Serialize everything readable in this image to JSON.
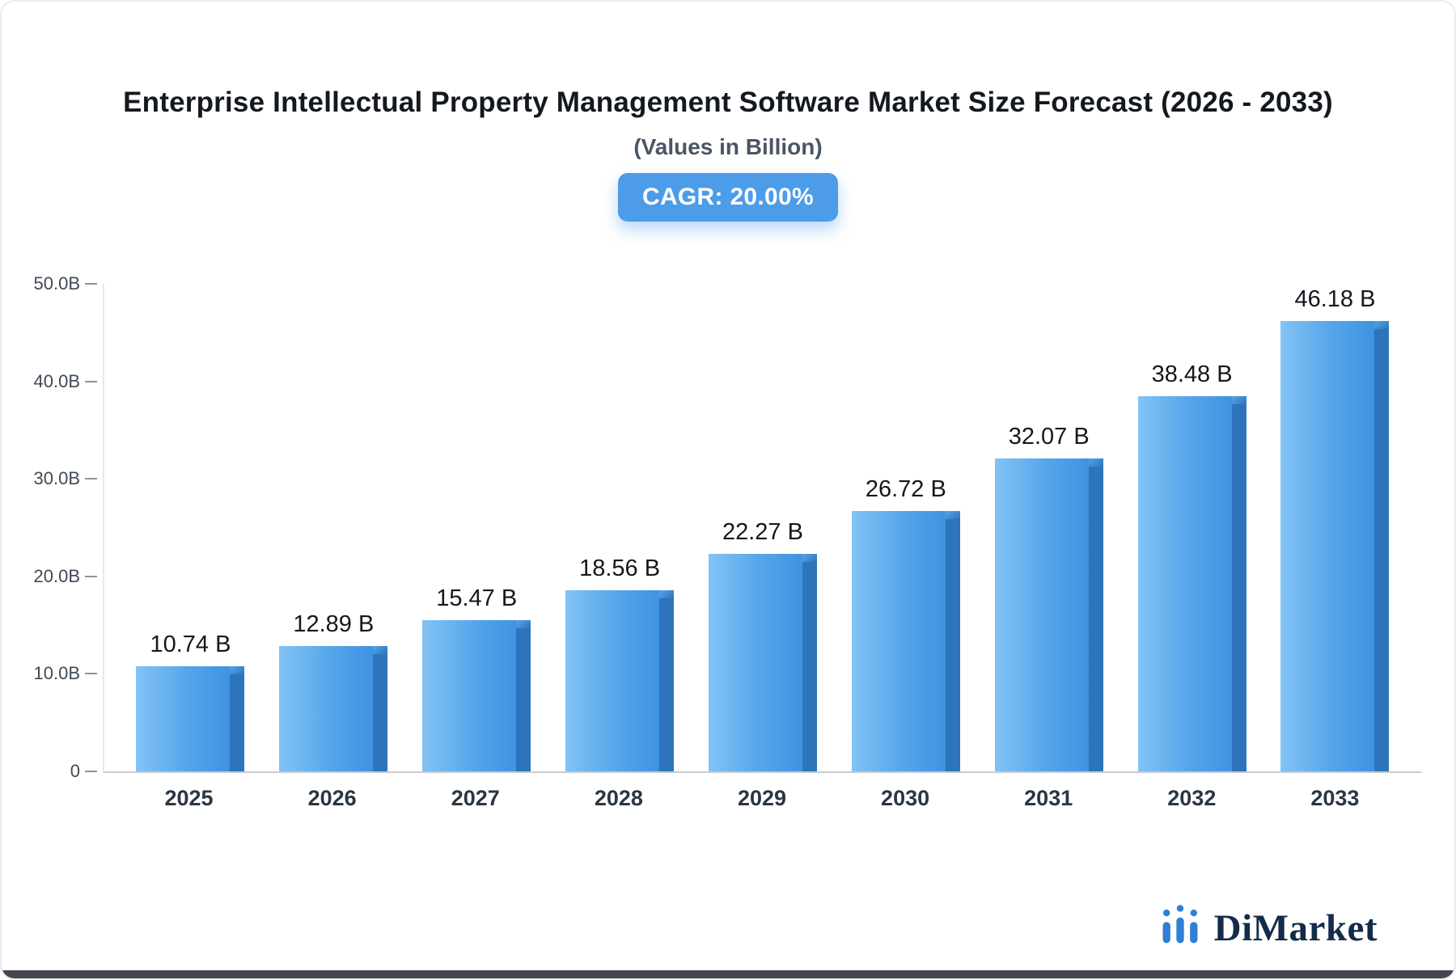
{
  "header": {
    "title": "Enterprise Intellectual Property Management Software Market Size Forecast (2026 - 2033)",
    "subtitle": "(Values in Billion)",
    "cagr_badge": "CAGR: 20.00%"
  },
  "chart_data": {
    "type": "bar",
    "title": "Enterprise Intellectual Property Management Software Market Size Forecast (2026 - 2033)",
    "subtitle": "(Values in Billion)",
    "annotation": "CAGR: 20.00%",
    "categories": [
      "2025",
      "2026",
      "2027",
      "2028",
      "2029",
      "2030",
      "2031",
      "2032",
      "2033"
    ],
    "values": [
      10.74,
      12.89,
      15.47,
      18.56,
      22.27,
      26.72,
      32.07,
      38.48,
      46.18
    ],
    "value_labels": [
      "10.74 B",
      "12.89 B",
      "15.47 B",
      "18.56 B",
      "22.27 B",
      "26.72 B",
      "32.07 B",
      "38.48 B",
      "46.18 B"
    ],
    "xlabel": "",
    "ylabel": "",
    "ylim": [
      0,
      50
    ],
    "yticks": [
      {
        "value": 0,
        "label": "0"
      },
      {
        "value": 10,
        "label": "10.0B"
      },
      {
        "value": 20,
        "label": "20.0B"
      },
      {
        "value": 30,
        "label": "30.0B"
      },
      {
        "value": 40,
        "label": "40.0B"
      },
      {
        "value": 50,
        "label": "50.0B"
      }
    ],
    "grid": false,
    "legend": false
  },
  "colors": {
    "bar_light": "#83c3f5",
    "bar_mid": "#55a5ea",
    "bar_main": "#3e93e2",
    "bar_side": "#2d74bb",
    "badge_bg": "#4c9ce8",
    "logo_blue": "#2e7fd6",
    "logo_text": "#122c49"
  },
  "logo": {
    "text": "DiMarket",
    "icon": "dimarket-bars-icon"
  }
}
